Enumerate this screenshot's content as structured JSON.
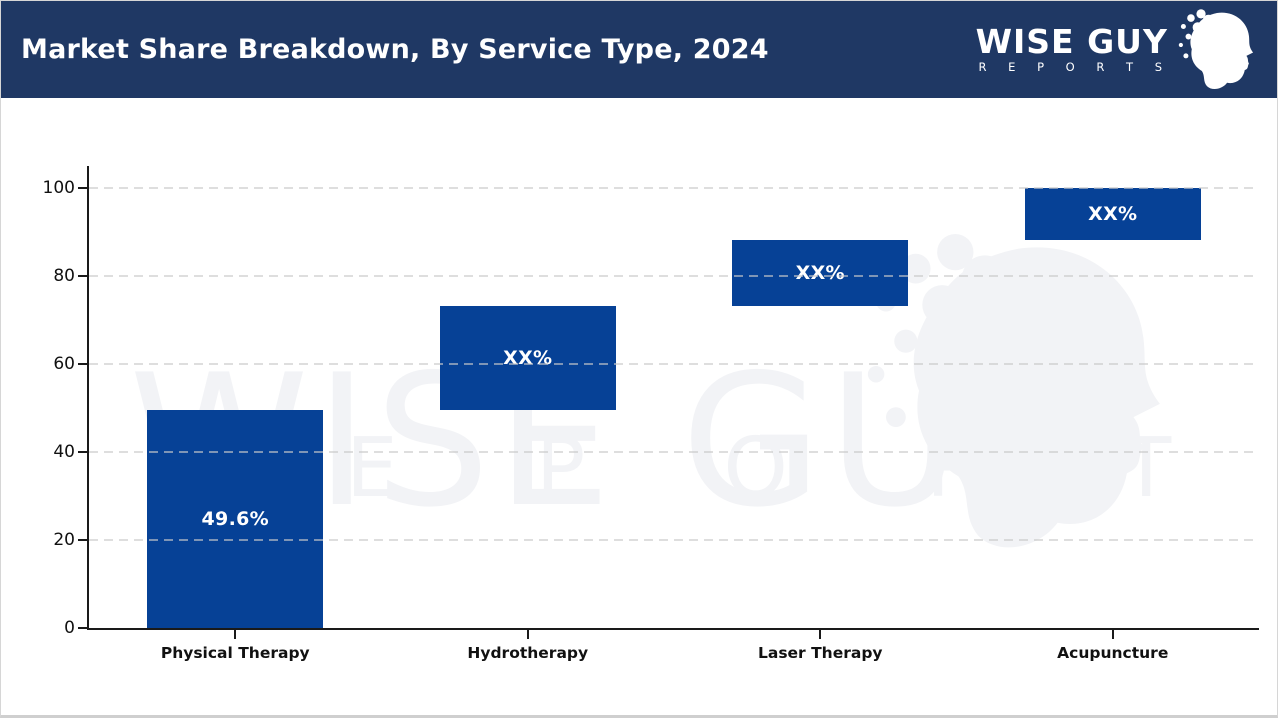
{
  "header": {
    "title": "Market Share Breakdown, By Service Type, 2024",
    "brand": {
      "line1": "WISE GUY",
      "line2": "R E P O R T S"
    }
  },
  "watermark": {
    "line1": "WISE GUY",
    "line2": "R E P O R T S"
  },
  "chart_data": {
    "type": "bar",
    "subtype": "waterfall",
    "title": "Market Share Breakdown, By Service Type, 2024",
    "categories": [
      "Physical Therapy",
      "Hydrotherapy",
      "Laser Therapy",
      "Acupuncture"
    ],
    "segments": [
      {
        "category": "Physical Therapy",
        "start": 0,
        "end": 49.6,
        "label": "49.6%"
      },
      {
        "category": "Hydrotherapy",
        "start": 49.6,
        "end": 73.2,
        "label": "XX%"
      },
      {
        "category": "Laser Therapy",
        "start": 73.2,
        "end": 88.2,
        "label": "XX%"
      },
      {
        "category": "Acupuncture",
        "start": 88.2,
        "end": 100,
        "label": "XX%"
      }
    ],
    "ylim": [
      0,
      100
    ],
    "yticks": [
      0,
      20,
      40,
      60,
      80,
      100
    ],
    "grid": "horizontal dashed",
    "legend": "none",
    "bar_color": "#064196",
    "bar_label_color": "#ffffff",
    "axis_color": "#1a1a1a",
    "grid_color": "#c9c9c9",
    "header_bg_color": "#1f3864",
    "watermark_color": "#f2f3f6"
  }
}
